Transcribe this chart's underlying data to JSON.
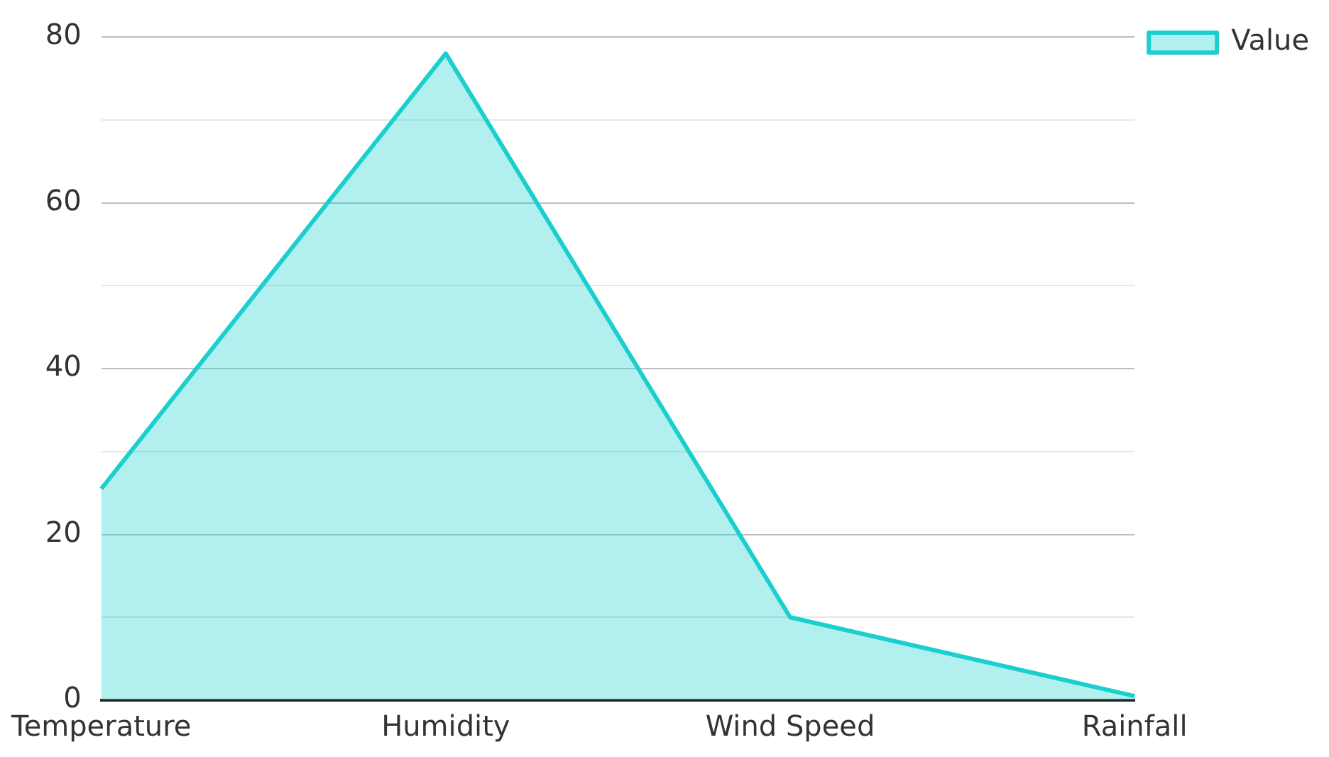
{
  "chart_data": {
    "type": "area",
    "categories": [
      "Temperature",
      "Humidity",
      "Wind Speed",
      "Rainfall"
    ],
    "series": [
      {
        "name": "Value",
        "color": "#1ccfcf",
        "values": [
          25.5,
          78,
          10,
          0.5
        ]
      }
    ],
    "ylim": [
      0,
      80
    ],
    "yticks": [
      0,
      {
        "value": 10,
        "label": null
      },
      20,
      {
        "value": 30,
        "label": null
      },
      40,
      {
        "value": 50,
        "label": null
      },
      60,
      {
        "value": 70,
        "label": null
      },
      80
    ],
    "grid": "y",
    "legend": "top right"
  }
}
